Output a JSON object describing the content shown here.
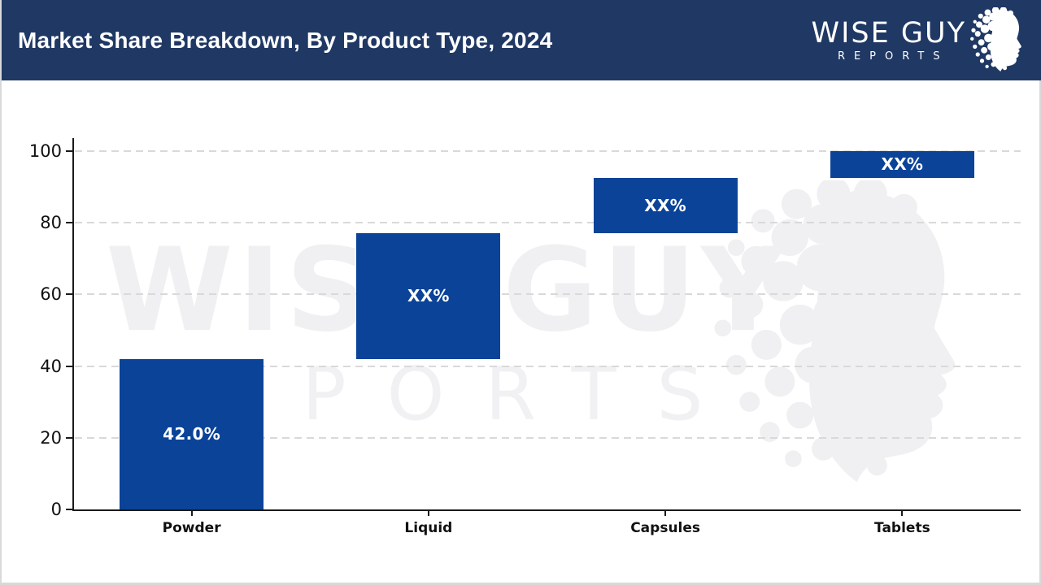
{
  "header": {
    "title": "Market Share Breakdown, By Product Type, 2024",
    "logo": {
      "line1": "WISE GUY",
      "line2": "REPORTS",
      "icon": "wiseguy-face-icon"
    }
  },
  "watermark": {
    "line1": "WISE GUY",
    "line2": "REPORTS",
    "icon": "wiseguy-face-icon"
  },
  "colors": {
    "header_bg": "#1f3864",
    "bar": "#0a4398",
    "bar_label": "#ffffff",
    "axis": "#1a1a1a",
    "grid": "#d9d9d9",
    "watermark": "#f0f0f3"
  },
  "chart_data": {
    "type": "bar",
    "subtype": "waterfall",
    "title": "Market Share Breakdown, By Product Type, 2024",
    "categories": [
      "Powder",
      "Liquid",
      "Capsules",
      "Tablets"
    ],
    "segments": [
      {
        "category": "Powder",
        "start": 0,
        "end": 42.0,
        "label": "42.0%"
      },
      {
        "category": "Liquid",
        "start": 42.0,
        "end": 77.2,
        "label": "XX%"
      },
      {
        "category": "Capsules",
        "start": 77.2,
        "end": 92.6,
        "label": "XX%"
      },
      {
        "category": "Tablets",
        "start": 92.6,
        "end": 100.0,
        "label": "XX%"
      }
    ],
    "yticks": [
      0,
      20,
      40,
      60,
      80,
      100
    ],
    "ylim": [
      0,
      103.5
    ],
    "xlabel": "",
    "ylabel": "",
    "grid": "dashed-horizontal",
    "legend": "none",
    "bar_color": "#0a4398",
    "label_color": "#ffffff"
  }
}
